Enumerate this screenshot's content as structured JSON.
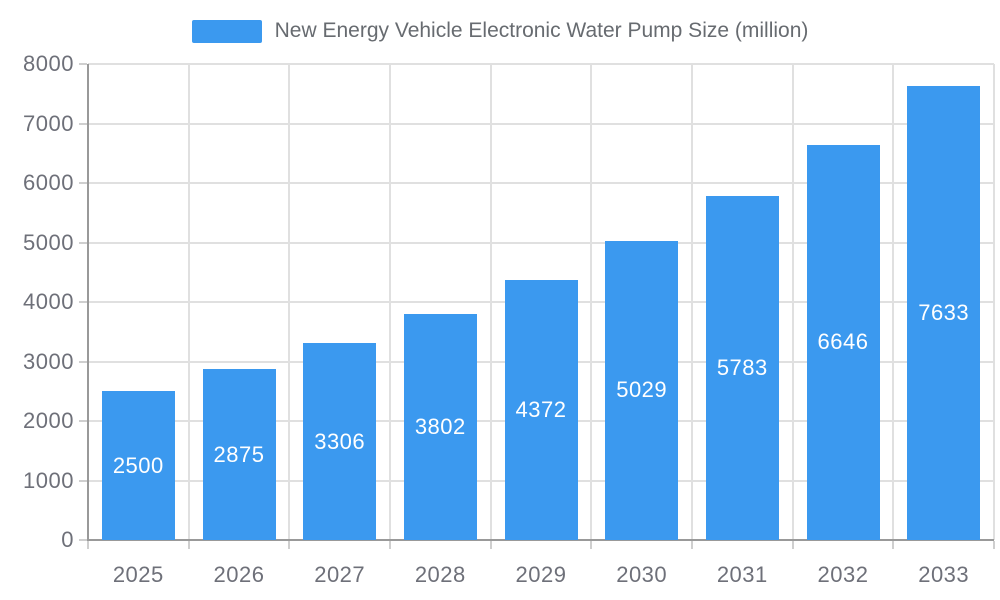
{
  "chart_data": {
    "type": "bar",
    "title": "New Energy Vehicle Electronic Water Pump Size (million)",
    "legend_label": "New Energy Vehicle Electronic Water Pump Size (million)",
    "categories": [
      "2025",
      "2026",
      "2027",
      "2028",
      "2029",
      "2030",
      "2031",
      "2032",
      "2033"
    ],
    "values": [
      2500,
      2875,
      3306,
      3802,
      4372,
      5029,
      5783,
      6646,
      7633
    ],
    "xlabel": "",
    "ylabel": "",
    "ylim": [
      0,
      8000
    ],
    "y_tick_interval": 1000,
    "y_tick_labels": [
      "0",
      "1000",
      "2000",
      "3000",
      "4000",
      "5000",
      "6000",
      "7000",
      "8000"
    ],
    "grid": true,
    "legend_position": "top-center",
    "bar_label_position": "inside-center"
  },
  "colors": {
    "bar": "#3b99ef",
    "grid": "#e0e0e0",
    "axis": "#999999",
    "tick": "#cfcfcf",
    "tick_label": "#6e7079",
    "bar_label": "#ffffff",
    "legend_text": "#676b70",
    "background": "#ffffff"
  }
}
